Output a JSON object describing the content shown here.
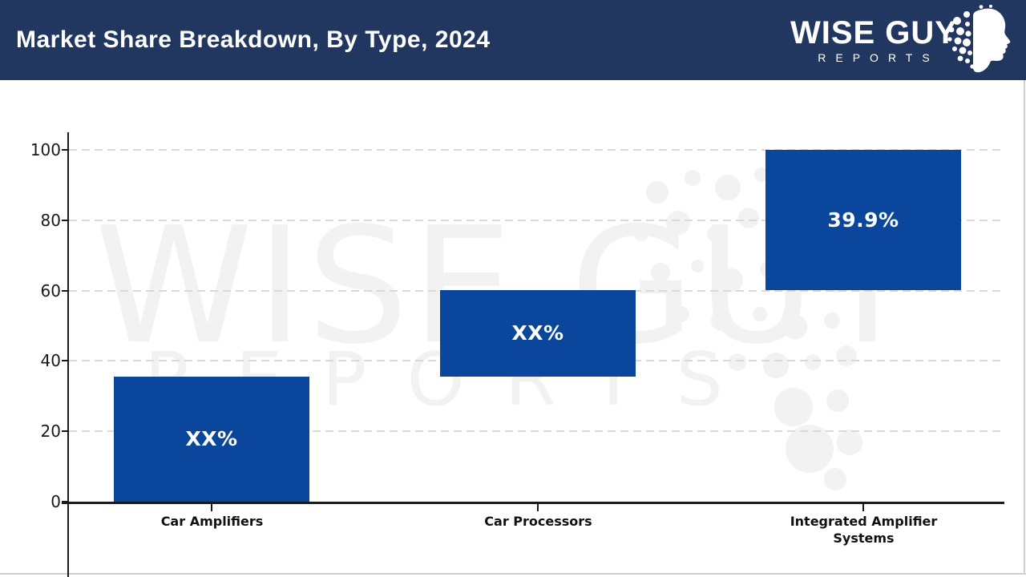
{
  "header": {
    "title": "Market Share Breakdown, By Type, 2024",
    "logo": {
      "line1": "WISE GUY",
      "line2": "REPORTS"
    }
  },
  "watermark": {
    "line1": "WISE GUY",
    "line2": "REPORTS"
  },
  "colors": {
    "header_bg": "#21375f",
    "bar": "#0a469c",
    "bar_label": "#ffffff",
    "grid": "#d9d9d9",
    "axis": "#1a1a1a",
    "watermark": "#f2f2f2"
  },
  "chart_data": {
    "type": "bar",
    "subtype": "waterfall-floating-segments",
    "title": "Market Share Breakdown, By Type, 2024",
    "categories": [
      "Car Amplifiers",
      "Car Processors",
      "Integrated Amplifier Systems"
    ],
    "segments": [
      {
        "category": "Car Amplifiers",
        "start": 0,
        "end": 35.6,
        "value": 35.6,
        "label": "XX%"
      },
      {
        "category": "Car Processors",
        "start": 35.6,
        "end": 60.1,
        "value": 24.5,
        "label": "XX%"
      },
      {
        "category": "Integrated Amplifier Systems",
        "start": 60.1,
        "end": 100,
        "value": 39.9,
        "label": "39.9%"
      }
    ],
    "xlabel": "",
    "ylabel": "",
    "ylim": [
      0,
      105
    ],
    "yticks": [
      0,
      20,
      40,
      60,
      80,
      100
    ],
    "grid": "horizontal dashed",
    "legend": "none",
    "bar_color": "#0a469c",
    "label_color": "#ffffff"
  }
}
